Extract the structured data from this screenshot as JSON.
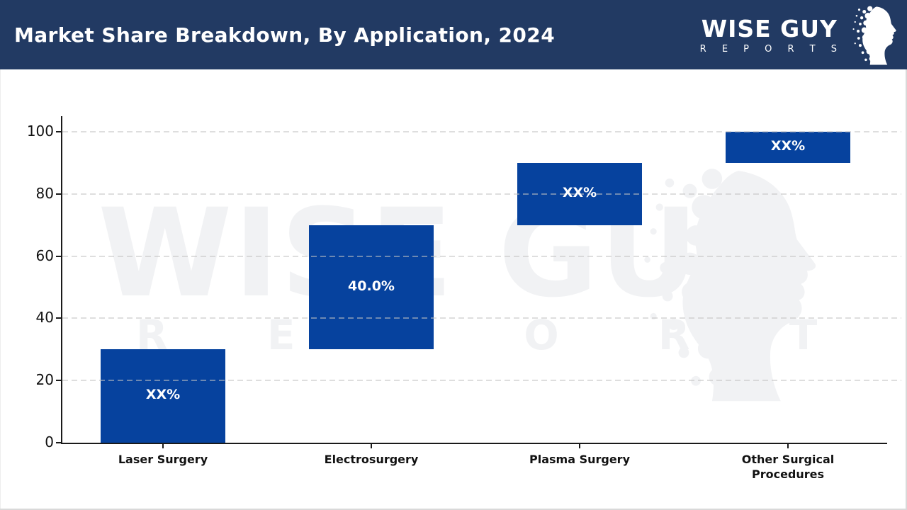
{
  "header": {
    "title": "Market Share Breakdown, By Application, 2024",
    "bg_color": "#223a63",
    "logo": {
      "line1": "WISE GUY",
      "line2": "R E P O R T S"
    }
  },
  "watermark": {
    "line1": "WISE GUY",
    "line2": "R E P O R T S"
  },
  "chart_data": {
    "type": "bar",
    "subtype": "waterfall",
    "title": "Market Share Breakdown, By Application, 2024",
    "categories": [
      "Laser Surgery",
      "Electrosurgery",
      "Plasma Surgery",
      "Other Surgical Procedures"
    ],
    "series": [
      {
        "name": "Market Share",
        "segments": [
          {
            "category": "Laser Surgery",
            "start": 0,
            "end": 30,
            "label": "XX%"
          },
          {
            "category": "Electrosurgery",
            "start": 30,
            "end": 70,
            "label": "40.0%"
          },
          {
            "category": "Plasma Surgery",
            "start": 70,
            "end": 90,
            "label": "XX%"
          },
          {
            "category": "Other Surgical Procedures",
            "start": 90,
            "end": 100,
            "label": "XX%"
          }
        ]
      }
    ],
    "ylim": [
      0,
      100
    ],
    "yticks": [
      0,
      20,
      40,
      60,
      80,
      100
    ],
    "xlabel": "",
    "ylabel": "",
    "grid": "horizontal-dashed",
    "legend": "none",
    "bar_color": "#06429e",
    "bar_label_color": "#ffffff"
  }
}
